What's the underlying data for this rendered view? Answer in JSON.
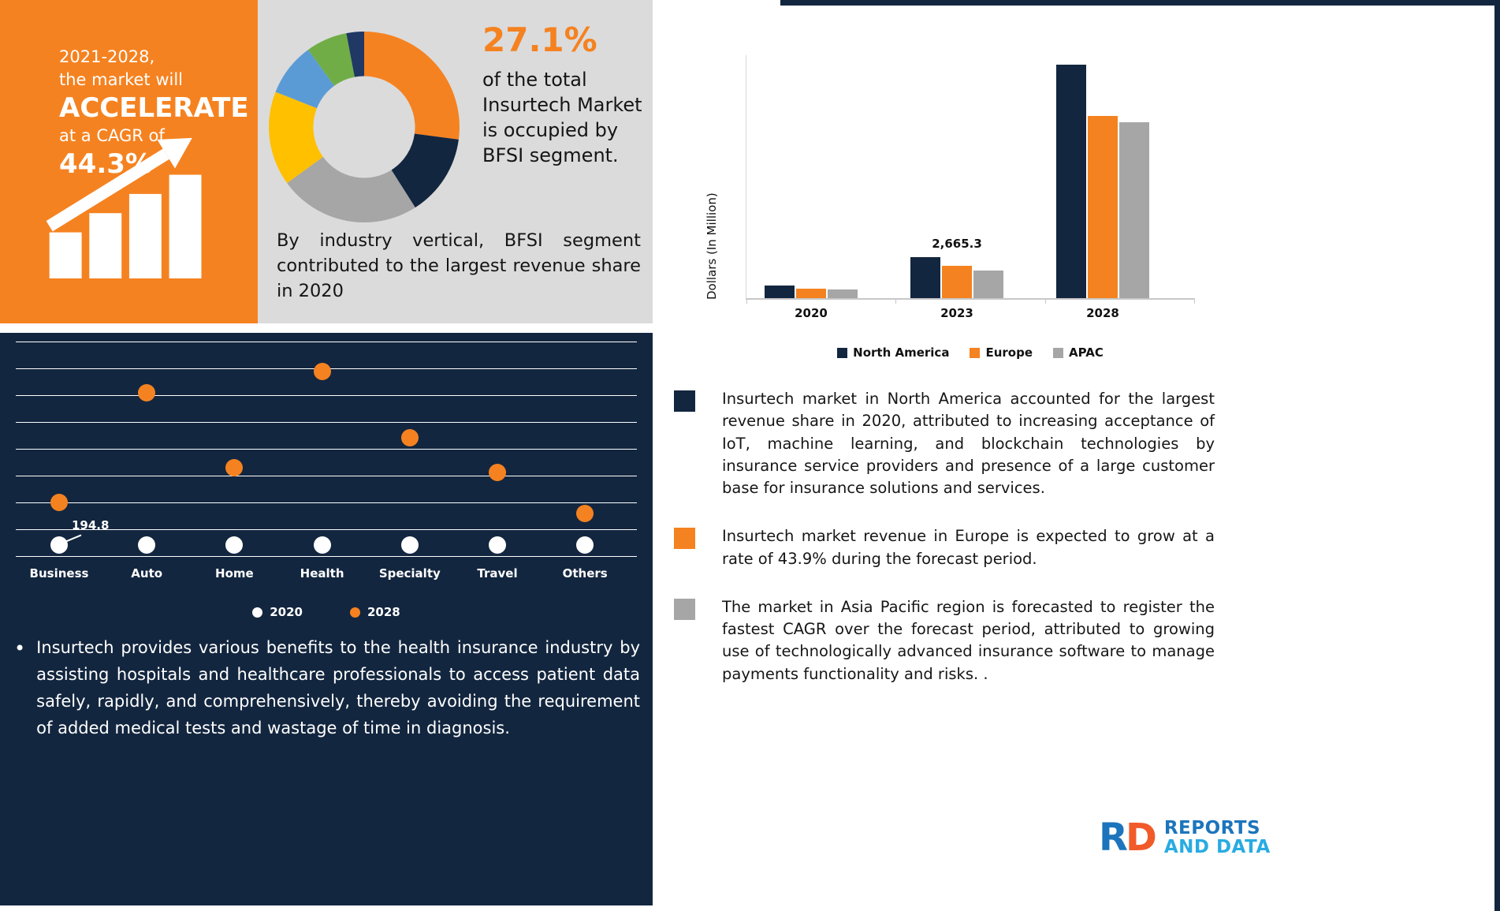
{
  "colors": {
    "orange": "#F58220",
    "navy": "#13263F",
    "panel_gray": "#DBDBDB",
    "series_gray": "#A6A6A6",
    "yellow": "#FFC000",
    "light_blue": "#5B9BD5",
    "green": "#70AD47",
    "dark_blue": "#1F3864",
    "logo_blue": "#1C75BC",
    "logo_light_blue": "#29ABE2",
    "logo_orange": "#F15A29",
    "white": "#FFFFFF"
  },
  "accelerate_box": {
    "period": "2021-2028,",
    "line2": "the market will",
    "emphasis": "ACCELERATE",
    "line4": "at a CAGR of",
    "cagr": "44.3%"
  },
  "bfsi_section": {
    "stat": "27.1%",
    "stat_caption": "of the total Insurtech Market is occupied by BFSI segment.",
    "footnote": "By industry vertical, BFSI segment contributed to the largest revenue share in 2020"
  },
  "regional_bullets": [
    {
      "color": "#13263F",
      "text": "Insurtech market in North America accounted for the largest revenue share in 2020, attributed to increasing acceptance of IoT, machine learning, and blockchain technologies by insurance service providers and presence of a large customer base for insurance solutions and services."
    },
    {
      "color": "#F58220",
      "text": "Insurtech market revenue in Europe is expected to grow at a rate of 43.9% during the forecast period."
    },
    {
      "color": "#A6A6A6",
      "text": "The market in Asia Pacific region is forecasted to register the fastest CAGR over the forecast period, attributed to growing use of technologically advanced insurance software to manage payments functionality and risks. ."
    }
  ],
  "bottom_bullet": "Insurtech provides various benefits to the health insurance industry by assisting hospitals and healthcare professionals to access patient data safely, rapidly, and comprehensively, thereby avoiding the requirement of added medical tests and wastage of time in diagnosis.",
  "logo": {
    "letter_r": "R",
    "letter_d": "D",
    "line1": "REPORTS",
    "line2": "AND DATA"
  },
  "chart_data": [
    {
      "id": "industry-vertical-donut",
      "type": "pie",
      "title": "",
      "segments": [
        {
          "label": "BFSI",
          "value": 27.1,
          "color": "#F58220"
        },
        {
          "label": "",
          "value": 13.9,
          "color": "#13263F"
        },
        {
          "label": "",
          "value": 24.0,
          "color": "#A6A6A6"
        },
        {
          "label": "",
          "value": 16.0,
          "color": "#FFC000"
        },
        {
          "label": "",
          "value": 9.0,
          "color": "#5B9BD5"
        },
        {
          "label": "",
          "value": 7.0,
          "color": "#70AD47"
        },
        {
          "label": "",
          "value": 3.0,
          "color": "#1F3864"
        }
      ]
    },
    {
      "id": "regional-revenue-bar",
      "type": "bar",
      "categories": [
        "2020",
        "2023",
        "2028"
      ],
      "series": [
        {
          "name": "North America",
          "color": "#13263F",
          "values": [
            840,
            2665.3,
            15300
          ]
        },
        {
          "name": "Europe",
          "color": "#F58220",
          "values": [
            630,
            2100,
            11900
          ]
        },
        {
          "name": "APAC",
          "color": "#A6A6A6",
          "values": [
            575,
            1830,
            11500
          ]
        }
      ],
      "ylabel": "Dollars (In Million)",
      "ylim": [
        0,
        16000
      ],
      "grid": false,
      "legend_position": "bottom",
      "data_labels": [
        {
          "category": "2023",
          "series": "North America",
          "text": "2,665.3"
        }
      ]
    },
    {
      "id": "segment-dot-plot",
      "type": "scatter",
      "categories": [
        "Business",
        "Auto",
        "Home",
        "Health",
        "Specialty",
        "Travel",
        "Others"
      ],
      "series": [
        {
          "name": "2020",
          "color": "#FFFFFF",
          "levels": [
            0.05,
            0.05,
            0.05,
            0.05,
            0.05,
            0.05,
            0.05
          ]
        },
        {
          "name": "2028",
          "color": "#F58220",
          "levels": [
            0.25,
            0.76,
            0.41,
            0.86,
            0.55,
            0.39,
            0.2
          ]
        }
      ],
      "data_labels": [
        {
          "category": "Business",
          "series": "2020",
          "text": "194.8"
        }
      ],
      "gridlines": 9,
      "legend_position": "bottom"
    }
  ]
}
